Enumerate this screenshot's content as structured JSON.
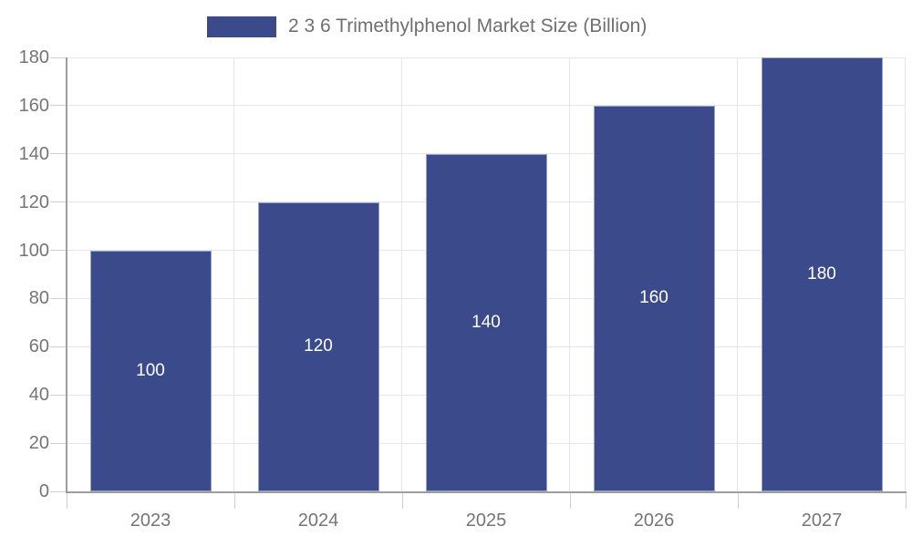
{
  "legend": {
    "label": "2 3 6 Trimethylphenol Market Size (Billion)"
  },
  "chart_data": {
    "type": "bar",
    "title": "",
    "legend_label": "2 3 6 Trimethylphenol Market Size (Billion)",
    "legend_position": "top",
    "categories": [
      "2023",
      "2024",
      "2025",
      "2026",
      "2027"
    ],
    "series": [
      {
        "name": "2 3 6 Trimethylphenol Market Size (Billion)",
        "values": [
          100,
          120,
          140,
          160,
          180
        ]
      }
    ],
    "value_labels": [
      "100",
      "120",
      "140",
      "160",
      "180"
    ],
    "yticks": [
      0,
      20,
      40,
      60,
      80,
      100,
      120,
      140,
      160,
      180
    ],
    "ylim": [
      0,
      180
    ],
    "xlabel": "",
    "ylabel": "",
    "grid": true,
    "colors": {
      "bar_fill": "#3a4a8b",
      "bar_border": "#98a3c9",
      "bar_value_text": "#ffffff",
      "axis_text": "#757575",
      "legend_text": "#6f6f6f",
      "grid_line": "#e6e6e6",
      "axis_line": "#9e9e9e",
      "tick_line": "#cfcfcf",
      "background": "#ffffff"
    }
  }
}
